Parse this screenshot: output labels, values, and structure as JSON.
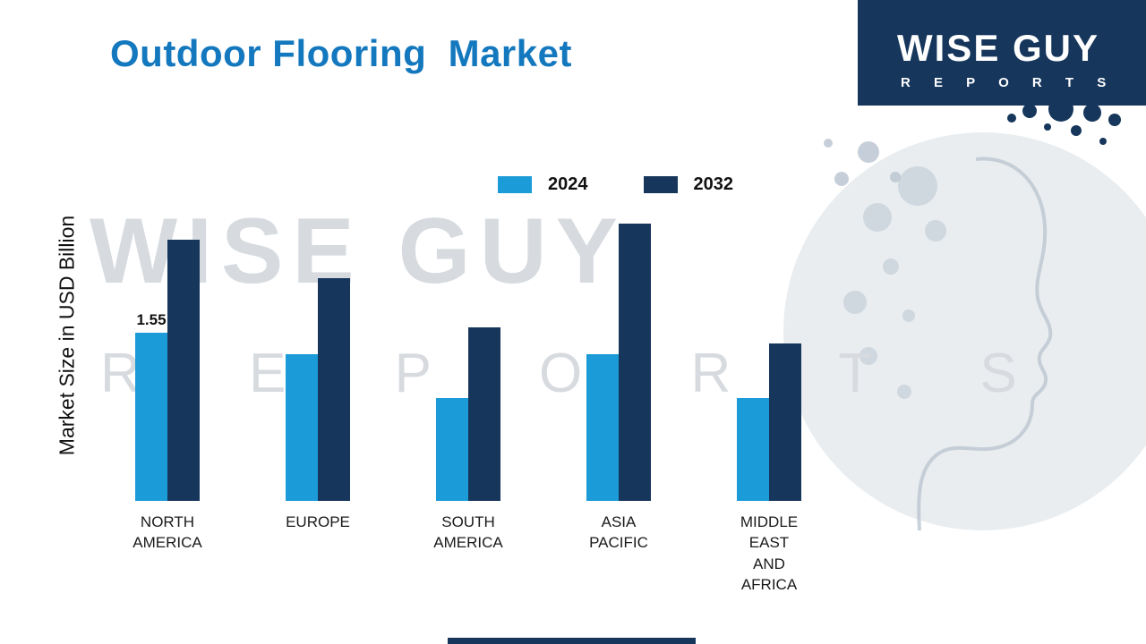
{
  "header": {
    "title": "Outdoor Flooring  Market"
  },
  "logo": {
    "brand": "WISE GUY",
    "sub": "R E P O R T S"
  },
  "watermark": {
    "line1": "WISE GUY",
    "line2": "R E P O R T S"
  },
  "legend": [
    {
      "label": "2024",
      "color": "#1b9bd8"
    },
    {
      "label": "2032",
      "color": "#16365c"
    }
  ],
  "chart_data": {
    "type": "bar",
    "title": "Outdoor Flooring Market",
    "xlabel": "",
    "ylabel": "Market Size in USD Billion",
    "categories": [
      "NORTH AMERICA",
      "EUROPE",
      "SOUTH AMERICA",
      "ASIA PACIFIC",
      "MIDDLE EAST AND AFRICA"
    ],
    "categories_display": [
      "NORTH\nAMERICA",
      "EUROPE",
      "SOUTH\nAMERICA",
      "ASIA\nPACIFIC",
      "MIDDLE\nEAST\nAND\nAFRICA"
    ],
    "series": [
      {
        "name": "2024",
        "color": "#1b9bd8",
        "values": [
          1.55,
          1.35,
          0.95,
          1.35,
          0.95
        ],
        "bar_labels": [
          "1.55",
          "",
          "",
          "",
          ""
        ]
      },
      {
        "name": "2032",
        "color": "#16365c",
        "values": [
          2.4,
          2.05,
          1.6,
          2.55,
          1.45
        ],
        "bar_labels": [
          "",
          "",
          "",
          "",
          ""
        ]
      }
    ],
    "ylim": [
      0,
      2.6
    ],
    "grid": false,
    "legend_position": "top-center"
  },
  "colors": {
    "title_blue": "#1478be",
    "navy": "#16365c",
    "light_blue": "#1b9bd8",
    "watermark_gray": "#d7dbe0",
    "circle_gray": "#e9edf0"
  }
}
